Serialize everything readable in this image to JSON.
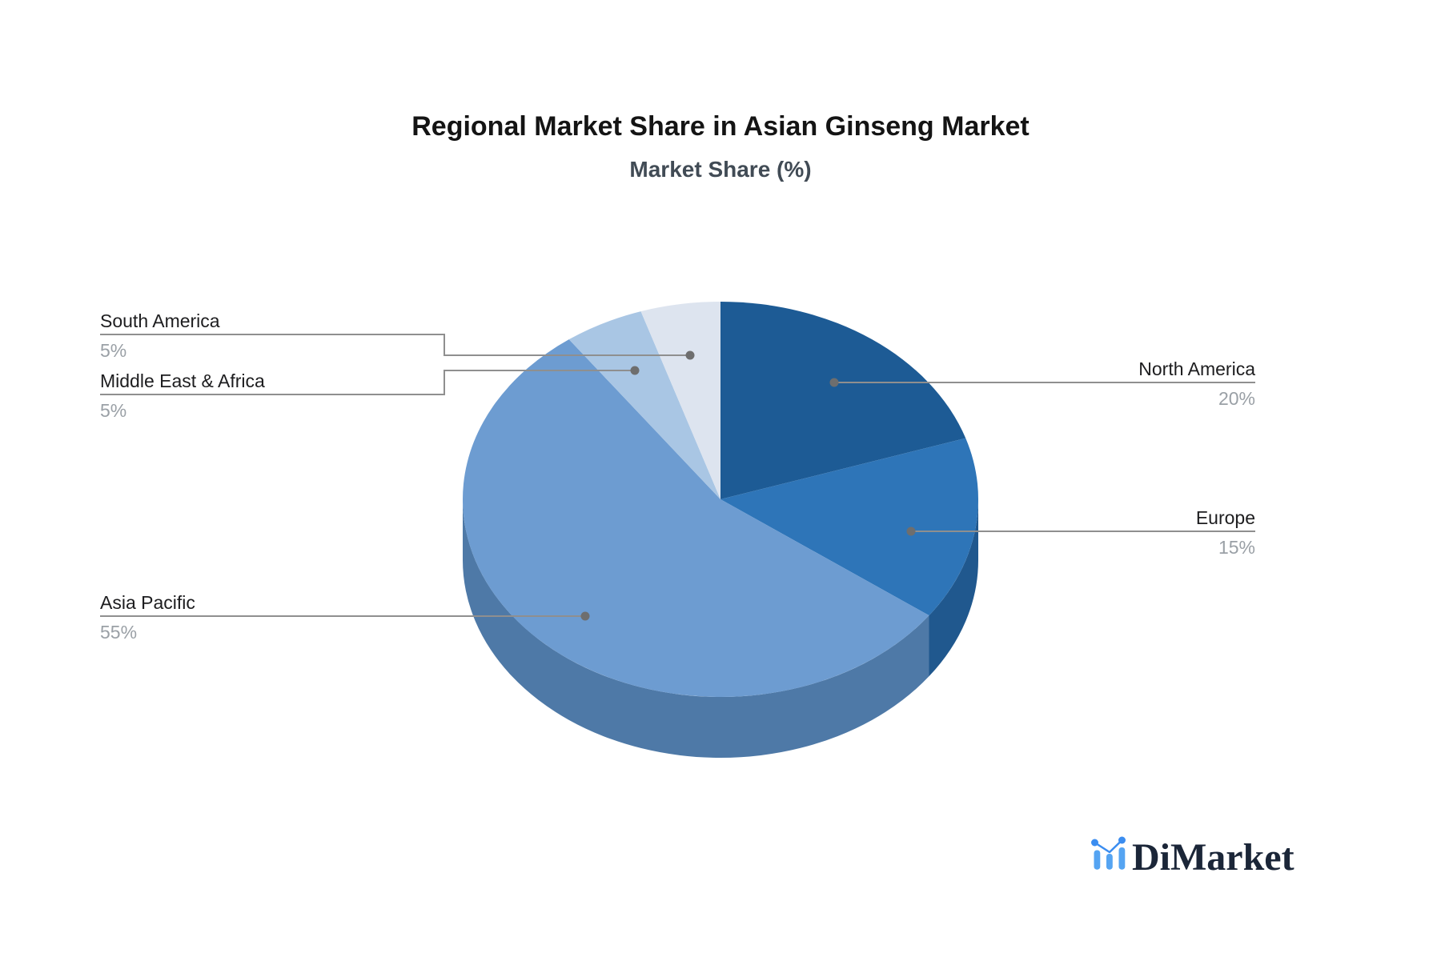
{
  "header": {
    "title": "Regional Market Share in Asian Ginseng Market",
    "subtitle": "Market Share (%)"
  },
  "chart_data": {
    "type": "pie",
    "style": "3d",
    "title": "Regional Market Share in Asian Ginseng Market",
    "subtitle": "Market Share (%)",
    "unit": "%",
    "start_angle": "12 o'clock, clockwise",
    "legend_position": "none",
    "annotation_style": "callout lines with dots, label above line and percent below",
    "slices": [
      {
        "label": "North America",
        "value": 20,
        "value_label": "20%",
        "color": "#1d5b95",
        "side_color": "#174a7b",
        "callout_side": "right"
      },
      {
        "label": "Europe",
        "value": 15,
        "value_label": "15%",
        "color": "#2e75b8",
        "side_color": "#20588e",
        "callout_side": "right"
      },
      {
        "label": "Asia Pacific",
        "value": 55,
        "value_label": "55%",
        "color": "#6d9cd1",
        "side_color": "#4e79a7",
        "callout_side": "left"
      },
      {
        "label": "Middle East & Africa",
        "value": 5,
        "value_label": "5%",
        "color": "#a9c6e4",
        "side_color": "#8aa8c6",
        "callout_side": "left"
      },
      {
        "label": "South America",
        "value": 5,
        "value_label": "5%",
        "color": "#dde4ef",
        "side_color": "#b9c4d4",
        "callout_side": "left"
      }
    ]
  },
  "branding": {
    "logo_text": "DiMarket",
    "logo_icon": "bar-line-chart-icon",
    "text_color": "#1b2638",
    "bar_color": "#55a4f2",
    "accent_color": "#3b8df0"
  }
}
